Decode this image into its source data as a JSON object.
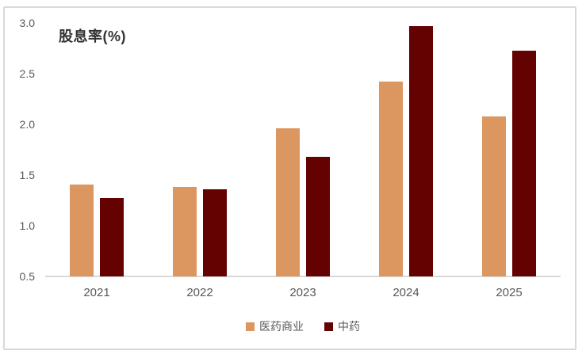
{
  "chart_data": {
    "type": "bar",
    "title": "股息率(%)",
    "categories": [
      "2021",
      "2022",
      "2023",
      "2024",
      "2025"
    ],
    "series": [
      {
        "name": "医药商业",
        "color": "#DC9660",
        "values": [
          1.41,
          1.38,
          1.96,
          2.42,
          2.08
        ]
      },
      {
        "name": "中药",
        "color": "#640101",
        "values": [
          1.27,
          1.36,
          1.68,
          2.97,
          2.73
        ]
      }
    ],
    "ylim": [
      0.5,
      3.0
    ],
    "yticks": [
      3.0,
      2.5,
      2.0,
      1.5,
      1.0,
      0.5
    ],
    "ytick_format_decimals": 1,
    "grid": false,
    "legend_position": "bottom",
    "axis_text_color": "#595959",
    "axis_line_color": "#d9d9d9",
    "title_color": "#333333",
    "border_color": "#d9d9d9"
  }
}
